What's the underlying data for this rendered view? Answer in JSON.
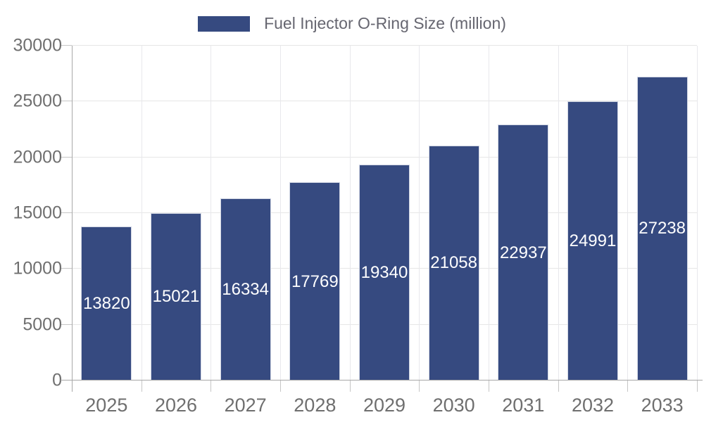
{
  "chart_data": {
    "type": "bar",
    "title": "Fuel Injector O-Ring Size (million)",
    "categories": [
      "2025",
      "2026",
      "2027",
      "2028",
      "2029",
      "2030",
      "2031",
      "2032",
      "2033"
    ],
    "values": [
      13820,
      15021,
      16334,
      17769,
      19340,
      21058,
      22937,
      24991,
      27238
    ],
    "xlabel": "",
    "ylabel": "",
    "ylim": [
      0,
      30000
    ],
    "yticks": [
      0,
      5000,
      10000,
      15000,
      20000,
      25000,
      30000
    ],
    "grid": true,
    "legend_position": "top-center",
    "bar_width_ratio": 0.73,
    "colors": {
      "bar": "#364a80",
      "bar_border": "#d2d7e4",
      "value_text": "#ffffff",
      "axis_line": "#a8a8a8",
      "tick_line": "#c6c6c6",
      "gridline_h": "#e6e6e6",
      "gridline_v": "#e8e8ec",
      "axis_text": "#6f6f6f",
      "legend_text": "#666670",
      "background": "#ffffff"
    }
  }
}
